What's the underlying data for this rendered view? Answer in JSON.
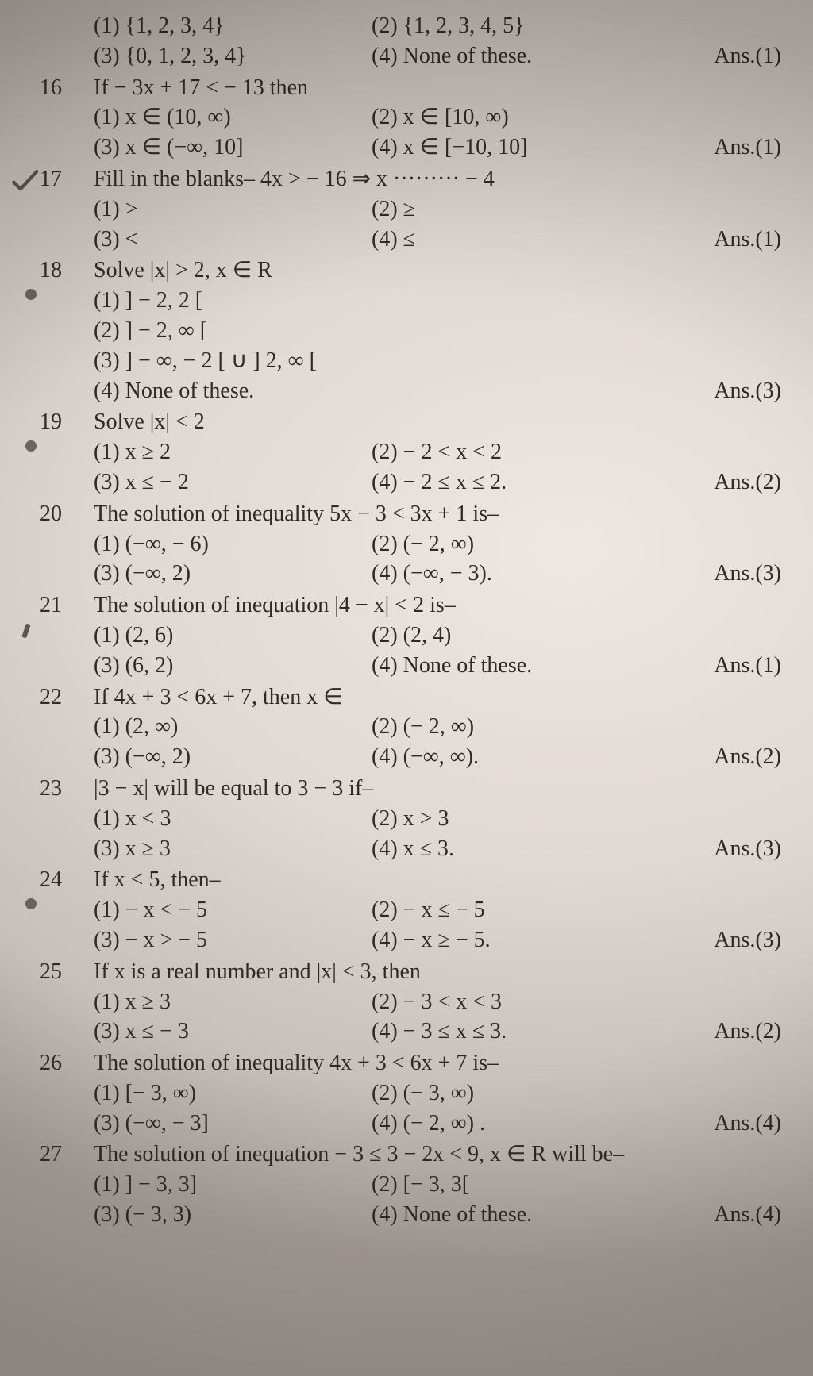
{
  "toptrail": "",
  "questions": [
    {
      "num": "",
      "stem": "",
      "opts": [
        {
          "n": "(1)",
          "t": "{1, 2, 3, 4}"
        },
        {
          "n": "(2)",
          "t": "{1, 2, 3, 4, 5}"
        },
        {
          "n": "(3)",
          "t": "{0, 1, 2, 3, 4}"
        },
        {
          "n": "(4)",
          "t": "None of these."
        }
      ],
      "ans": "Ans.(1)",
      "ans_row": 1
    },
    {
      "num": "16",
      "stem": "If − 3x + 17 < − 13 then",
      "opts": [
        {
          "n": "(1)",
          "t": "x ∈ (10, ∞)"
        },
        {
          "n": "(2)",
          "t": "x ∈ [10, ∞)"
        },
        {
          "n": "(3)",
          "t": "x ∈ (−∞, 10]"
        },
        {
          "n": "(4)",
          "t": "x ∈ [−10, 10]"
        }
      ],
      "ans": "Ans.(1)",
      "ans_row": 1
    },
    {
      "num": "17",
      "stem": "Fill in the blanks– 4x > − 16 ⇒ x ········· − 4",
      "mark": "check",
      "opts": [
        {
          "n": "(1)",
          "t": ">"
        },
        {
          "n": "(2)",
          "t": "≥"
        },
        {
          "n": "(3)",
          "t": "<"
        },
        {
          "n": "(4)",
          "t": "≤"
        }
      ],
      "ans": "Ans.(1)",
      "ans_row": 1
    },
    {
      "num": "18",
      "stem": "Solve |x| > 2, x ∈ R",
      "mark": "dot",
      "opts": [
        {
          "n": "(1)",
          "t": "] − 2, 2 [",
          "full": true
        },
        {
          "n": "(2)",
          "t": "] − 2, ∞ [",
          "full": true
        },
        {
          "n": "(3)",
          "t": "] − ∞, − 2 [ ∪ ] 2, ∞ [",
          "full": true
        },
        {
          "n": "(4)",
          "t": "None of these.",
          "full": true
        }
      ],
      "ans": "Ans.(3)",
      "ans_row": 3
    },
    {
      "num": "19",
      "stem": "Solve |x| < 2",
      "mark": "dot",
      "opts": [
        {
          "n": "(1)",
          "t": "x ≥ 2"
        },
        {
          "n": "(2)",
          "t": "− 2 < x < 2"
        },
        {
          "n": "(3)",
          "t": "x ≤ − 2"
        },
        {
          "n": "(4)",
          "t": "− 2 ≤ x ≤ 2."
        }
      ],
      "ans": "Ans.(2)",
      "ans_row": 1
    },
    {
      "num": "20",
      "stem": "The solution of inequality 5x − 3 < 3x + 1 is–",
      "opts": [
        {
          "n": "(1)",
          "t": "(−∞, − 6)"
        },
        {
          "n": "(2)",
          "t": "(− 2, ∞)"
        },
        {
          "n": "(3)",
          "t": "(−∞, 2)"
        },
        {
          "n": "(4)",
          "t": "(−∞, − 3)."
        }
      ],
      "ans": "Ans.(3)",
      "ans_row": 1
    },
    {
      "num": "21",
      "stem": "The solution of inequation |4 − x| < 2 is–",
      "mark": "tick",
      "opts": [
        {
          "n": "(1)",
          "t": "(2, 6)"
        },
        {
          "n": "(2)",
          "t": "(2, 4)"
        },
        {
          "n": "(3)",
          "t": "(6, 2)"
        },
        {
          "n": "(4)",
          "t": "None of these."
        }
      ],
      "ans": "Ans.(1)",
      "ans_row": 1
    },
    {
      "num": "22",
      "stem": "If 4x + 3 < 6x + 7, then x ∈",
      "opts": [
        {
          "n": "(1)",
          "t": "(2, ∞)"
        },
        {
          "n": "(2)",
          "t": "(− 2, ∞)"
        },
        {
          "n": "(3)",
          "t": "(−∞, 2)"
        },
        {
          "n": "(4)",
          "t": "(−∞, ∞)."
        }
      ],
      "ans": "Ans.(2)",
      "ans_row": 1
    },
    {
      "num": "23",
      "stem": "|3 − x| will be equal to 3 − 3 if–",
      "opts": [
        {
          "n": "(1)",
          "t": "x < 3"
        },
        {
          "n": "(2)",
          "t": "x > 3"
        },
        {
          "n": "(3)",
          "t": "x ≥ 3"
        },
        {
          "n": "(4)",
          "t": "x ≤ 3."
        }
      ],
      "ans": "Ans.(3)",
      "ans_row": 1
    },
    {
      "num": "24",
      "stem": "If x < 5, then–",
      "mark": "dot",
      "opts": [
        {
          "n": "(1)",
          "t": "− x < − 5"
        },
        {
          "n": "(2)",
          "t": "− x ≤ − 5"
        },
        {
          "n": "(3)",
          "t": "− x > − 5"
        },
        {
          "n": "(4)",
          "t": "− x ≥ − 5."
        }
      ],
      "ans": "Ans.(3)",
      "ans_row": 1
    },
    {
      "num": "25",
      "stem": "If x is a real number and |x| < 3, then",
      "opts": [
        {
          "n": "(1)",
          "t": "x ≥ 3"
        },
        {
          "n": "(2)",
          "t": "− 3 < x < 3"
        },
        {
          "n": "(3)",
          "t": "x ≤ − 3"
        },
        {
          "n": "(4)",
          "t": "− 3 ≤ x ≤ 3."
        }
      ],
      "ans": "Ans.(2)",
      "ans_row": 1
    },
    {
      "num": "26",
      "stem": "The solution of inequality 4x + 3 < 6x + 7 is–",
      "opts": [
        {
          "n": "(1)",
          "t": "[− 3, ∞)"
        },
        {
          "n": "(2)",
          "t": "(− 3, ∞)"
        },
        {
          "n": "(3)",
          "t": "(−∞, − 3]"
        },
        {
          "n": "(4)",
          "t": "(− 2, ∞) ."
        }
      ],
      "ans": "Ans.(4)",
      "ans_row": 1
    },
    {
      "num": "27",
      "stem": "The solution of inequation − 3 ≤ 3 − 2x < 9, x ∈ R will be–",
      "opts": [
        {
          "n": "(1)",
          "t": "] − 3, 3]"
        },
        {
          "n": "(2)",
          "t": "[− 3, 3["
        },
        {
          "n": "(3)",
          "t": "(− 3, 3)"
        },
        {
          "n": "(4)",
          "t": "None of these."
        }
      ],
      "ans": "Ans.(4)",
      "ans_row": 1
    }
  ]
}
